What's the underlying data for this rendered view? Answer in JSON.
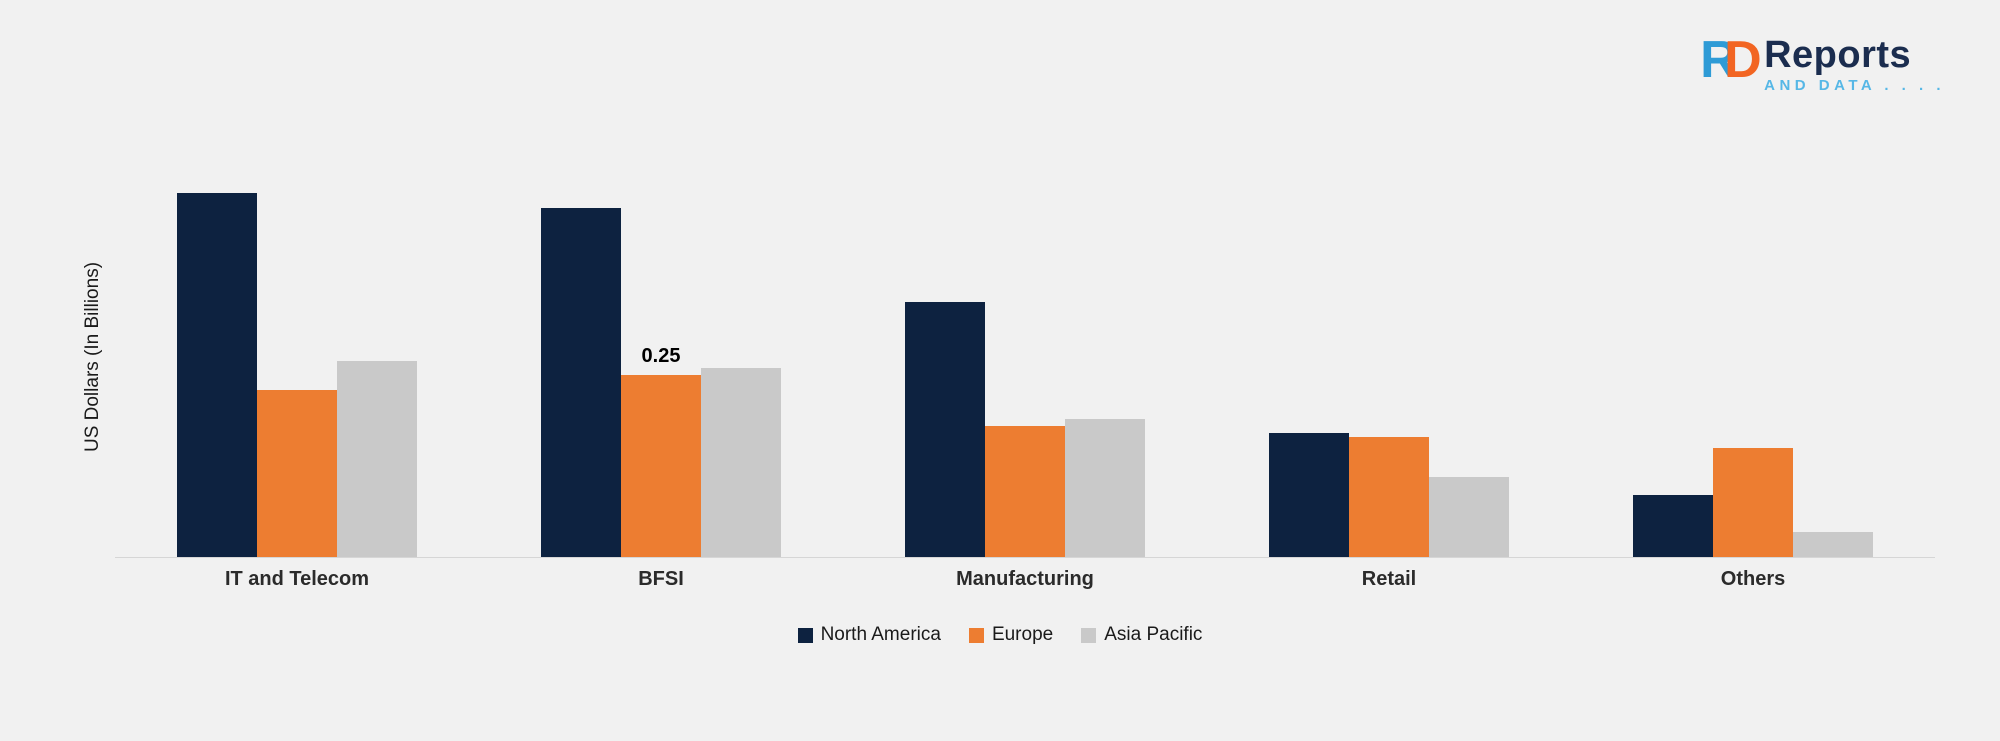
{
  "logo": {
    "line1": "Reports",
    "line2": "AND DATA . . . .",
    "icon_colors": {
      "blue": "#2e9bd6",
      "orange": "#f26522"
    }
  },
  "chart_data": {
    "type": "bar",
    "title": "",
    "ylabel": "US Dollars (In Billions)",
    "categories": [
      "IT and Telecom",
      "BFSI",
      "Manufacturing",
      "Retail",
      "Others"
    ],
    "series": [
      {
        "name": "North America",
        "color": "#0d2240",
        "values": [
          0.5,
          0.48,
          0.35,
          0.17,
          0.085
        ]
      },
      {
        "name": "Europe",
        "color": "#ed7d31",
        "values": [
          0.23,
          0.25,
          0.18,
          0.165,
          0.15
        ]
      },
      {
        "name": "Asia Pacific",
        "color": "#c9c9c9",
        "values": [
          0.27,
          0.26,
          0.19,
          0.11,
          0.035
        ]
      }
    ],
    "data_labels": [
      {
        "series": "Europe",
        "category": "BFSI",
        "text": "0.25"
      }
    ],
    "ylim": [
      0,
      0.55
    ],
    "grid": false,
    "legend_position": "bottom",
    "background_color": "#f1f1f1"
  }
}
